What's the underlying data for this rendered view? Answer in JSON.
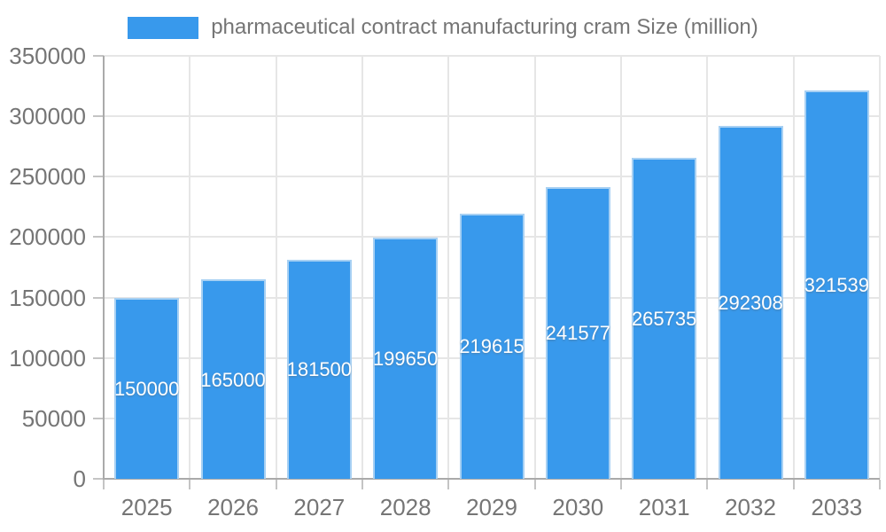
{
  "chart_data": {
    "type": "bar",
    "title": "pharmaceutical contract manufacturing cram Size (million)",
    "categories": [
      "2025",
      "2026",
      "2027",
      "2028",
      "2029",
      "2030",
      "2031",
      "2032",
      "2033"
    ],
    "values": [
      150000,
      165000,
      181500,
      199650,
      219615,
      241577,
      265735,
      292308,
      321539
    ],
    "value_labels": [
      "150000",
      "165000",
      "181500",
      "199650",
      "219615",
      "241577",
      "265735",
      "292308",
      "321539"
    ],
    "xlabel": "",
    "ylabel": "",
    "ylim": [
      0,
      350000
    ],
    "yticks": [
      0,
      50000,
      100000,
      150000,
      200000,
      250000,
      300000,
      350000
    ],
    "ytick_labels": [
      "0",
      "50000",
      "100000",
      "150000",
      "200000",
      "250000",
      "300000",
      "350000"
    ],
    "grid": true,
    "legend_position": "top",
    "colors": {
      "bar_fill": "#3899ec",
      "bar_border": "#a7d0f3",
      "value_text": "#ffffff",
      "axis_text": "#757575",
      "legend_text": "#757575",
      "gridline": "#e6e6e6",
      "axis_line": "#aaaaaa",
      "tick_mark": "#c4c4c4",
      "background": "#ffffff"
    }
  }
}
